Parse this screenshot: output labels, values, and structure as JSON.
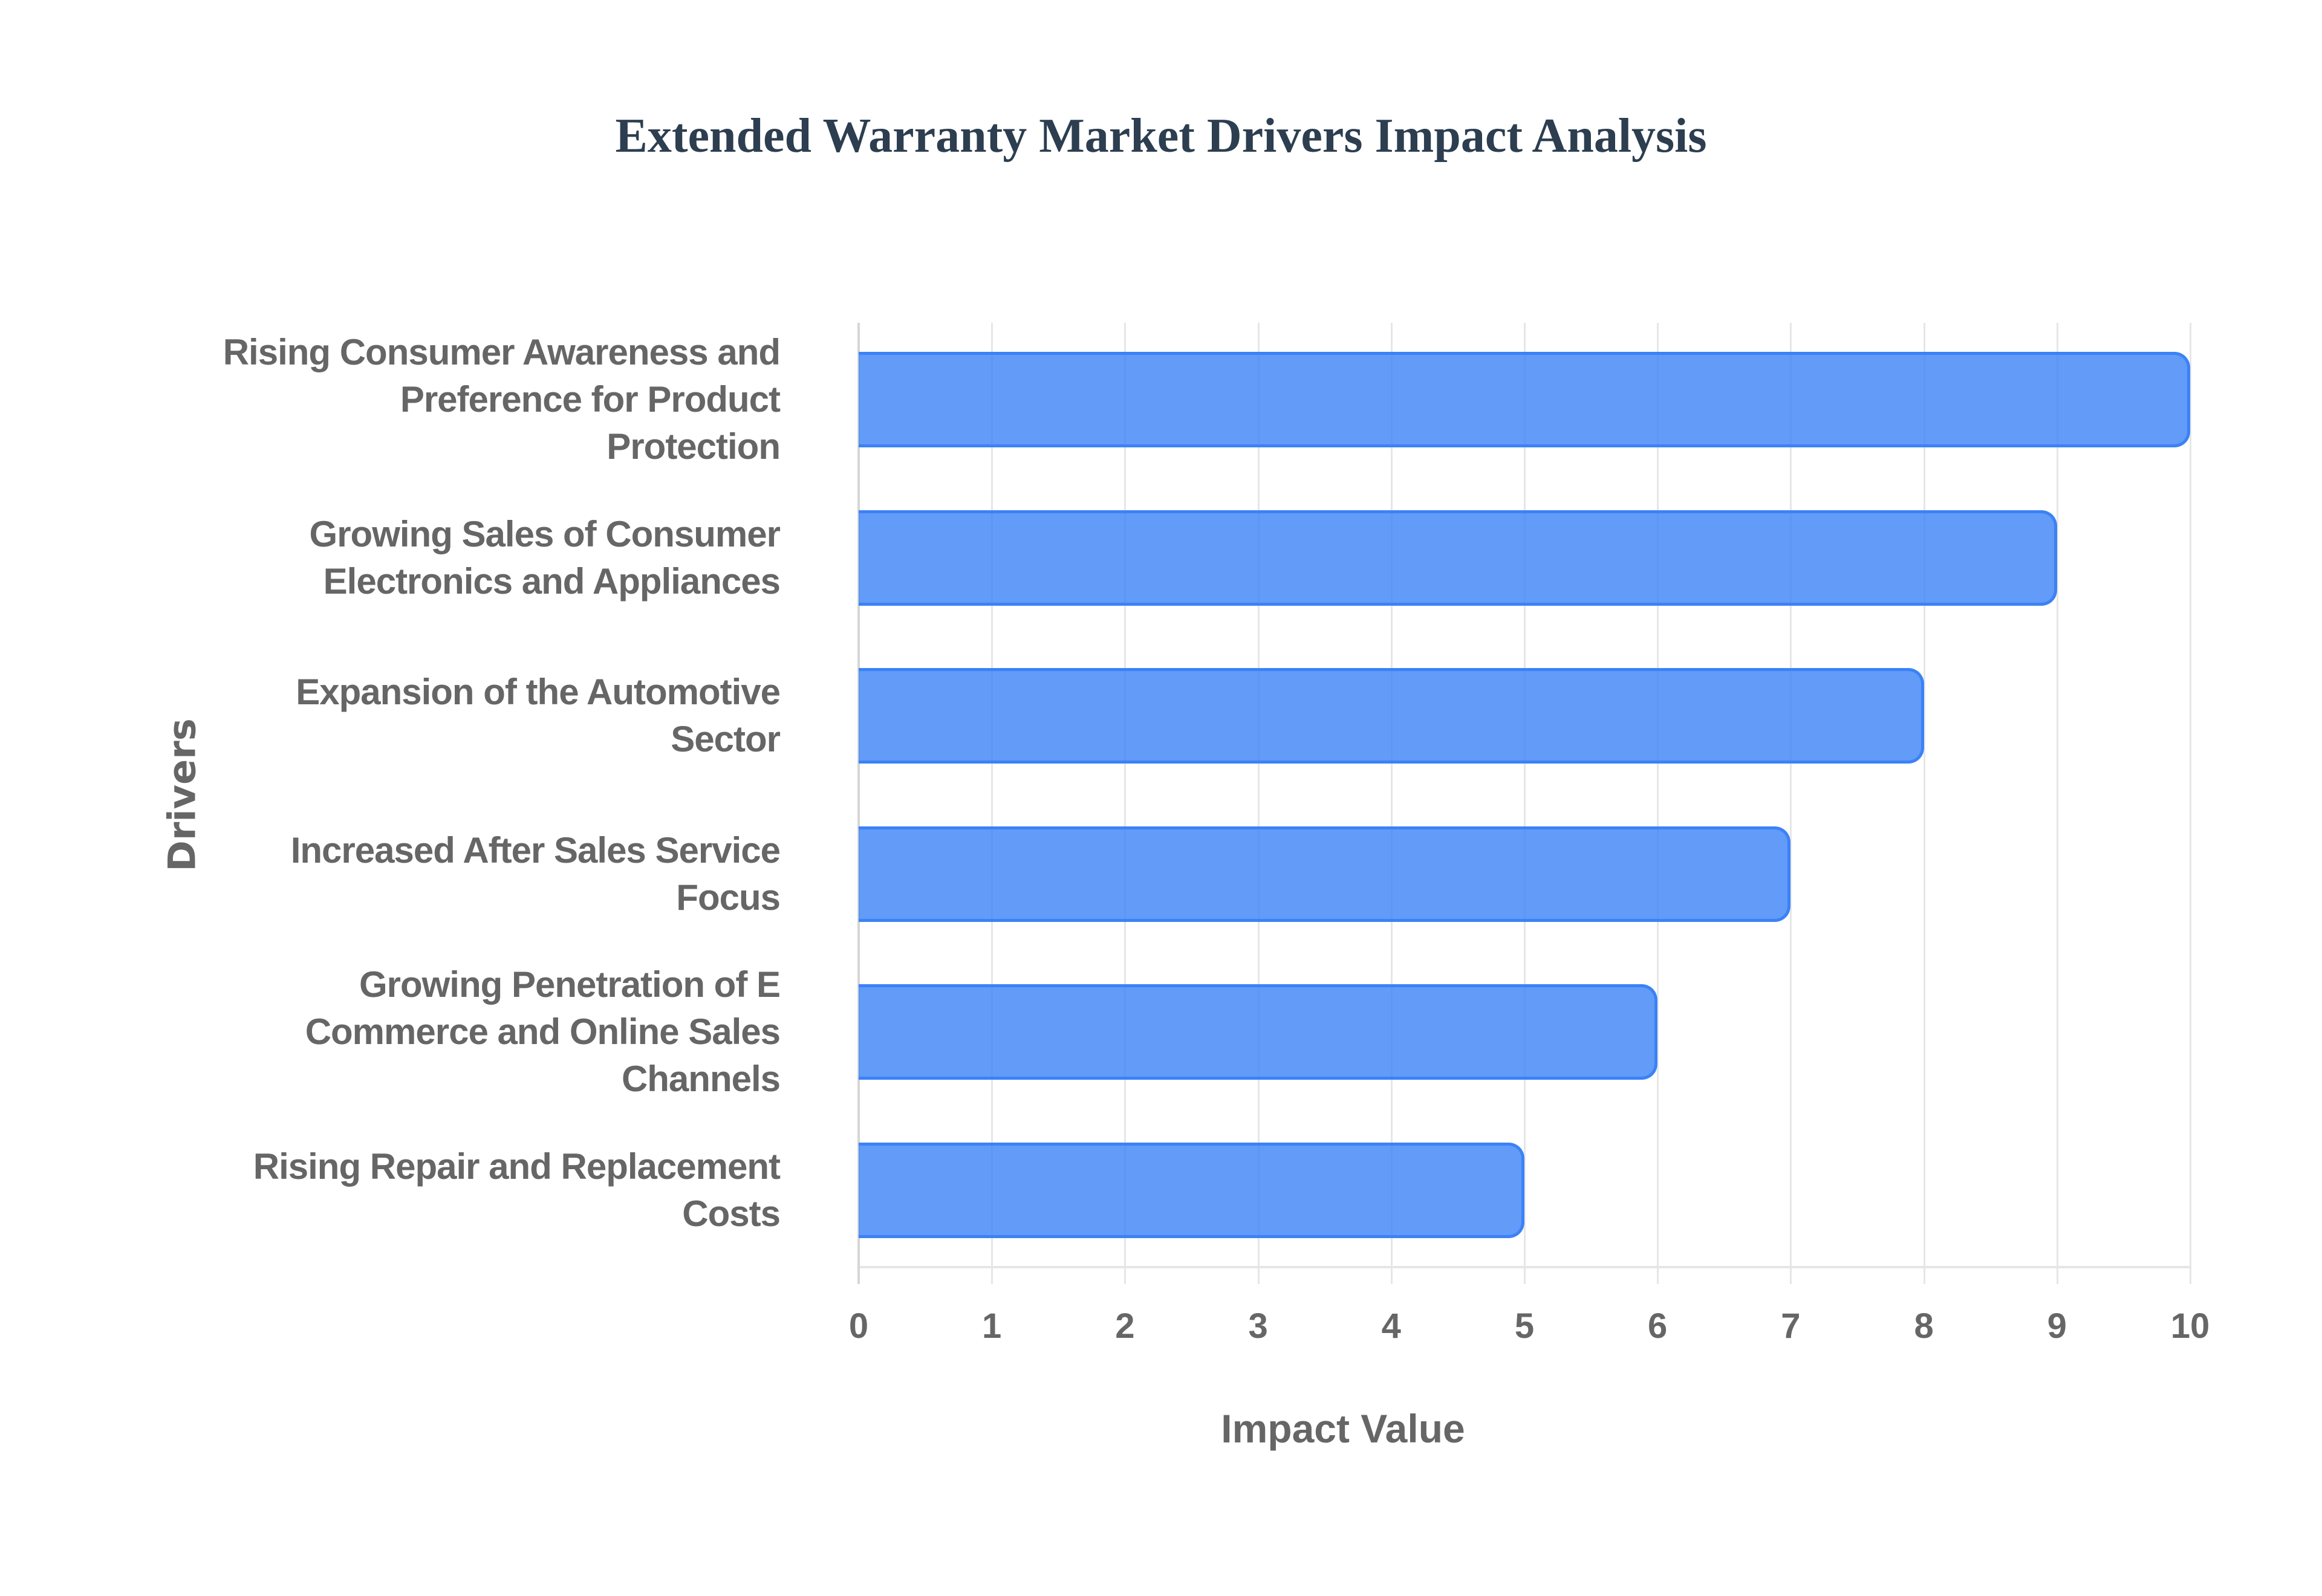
{
  "title": "Extended Warranty Market Drivers Impact Analysis",
  "colors": {
    "bar_fill": "#6199f5",
    "bar_border": "#3b82f6",
    "text": "#666666",
    "title": "#2c3e50",
    "grid": "#e6e6e6"
  },
  "axes": {
    "x_title": "Impact Value",
    "y_title": "Drivers",
    "x_ticks": [
      "0",
      "1",
      "2",
      "3",
      "4",
      "5",
      "6",
      "7",
      "8",
      "9",
      "10"
    ]
  },
  "chart_data": {
    "type": "bar",
    "orientation": "horizontal",
    "title": "Extended Warranty Market Drivers Impact Analysis",
    "xlabel": "Impact Value",
    "ylabel": "Drivers",
    "xlim": [
      0,
      10
    ],
    "grid": true,
    "legend": null,
    "categories": [
      "Rising Consumer Awareness and Preference for Product Protection",
      "Growing Sales of Consumer Electronics and Appliances",
      "Expansion of the Automotive Sector",
      "Increased After Sales Service Focus",
      "Growing Penetration of E Commerce and Online Sales Channels",
      "Rising Repair and Replacement Costs"
    ],
    "values": [
      10,
      9,
      8,
      7,
      6,
      5
    ]
  },
  "labels": [
    [
      "Rising Consumer Awareness and",
      "Preference for Product",
      "Protection"
    ],
    [
      "Growing Sales of Consumer",
      "Electronics and Appliances"
    ],
    [
      "Expansion of the Automotive",
      "Sector"
    ],
    [
      "Increased After Sales Service",
      "Focus"
    ],
    [
      "Growing Penetration of E",
      "Commerce and Online Sales",
      "Channels"
    ],
    [
      "Rising Repair and Replacement",
      "Costs"
    ]
  ]
}
